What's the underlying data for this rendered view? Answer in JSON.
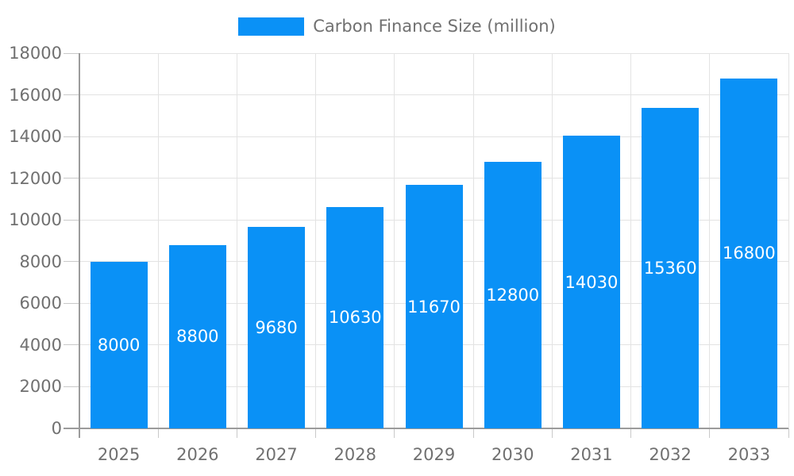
{
  "legend": {
    "label": "Carbon Finance Size (million)"
  },
  "colors": {
    "bar": "#0A91F6",
    "axis_line": "#9B9B9B",
    "grid_line": "#E3E3E3",
    "tick_mark": "#C9C9C9",
    "tick_text": "#707070",
    "value_label": "#FFFFFF",
    "background": "#FFFFFF"
  },
  "chart_data": {
    "type": "bar",
    "title": "Carbon Finance Size (million)",
    "categories": [
      "2025",
      "2026",
      "2027",
      "2028",
      "2029",
      "2030",
      "2031",
      "2032",
      "2033"
    ],
    "values": [
      8000,
      8800,
      9680,
      10630,
      11670,
      12800,
      14030,
      15360,
      16800
    ],
    "series_name": "Carbon Finance Size (million)",
    "xlabel": "",
    "ylabel": "",
    "ylim": [
      0,
      18000
    ],
    "ytick_step": 2000,
    "y_ticks": [
      0,
      2000,
      4000,
      6000,
      8000,
      10000,
      12000,
      14000,
      16000,
      18000
    ],
    "grid": true,
    "legend_position": "top",
    "value_label_position": "inside-center"
  }
}
